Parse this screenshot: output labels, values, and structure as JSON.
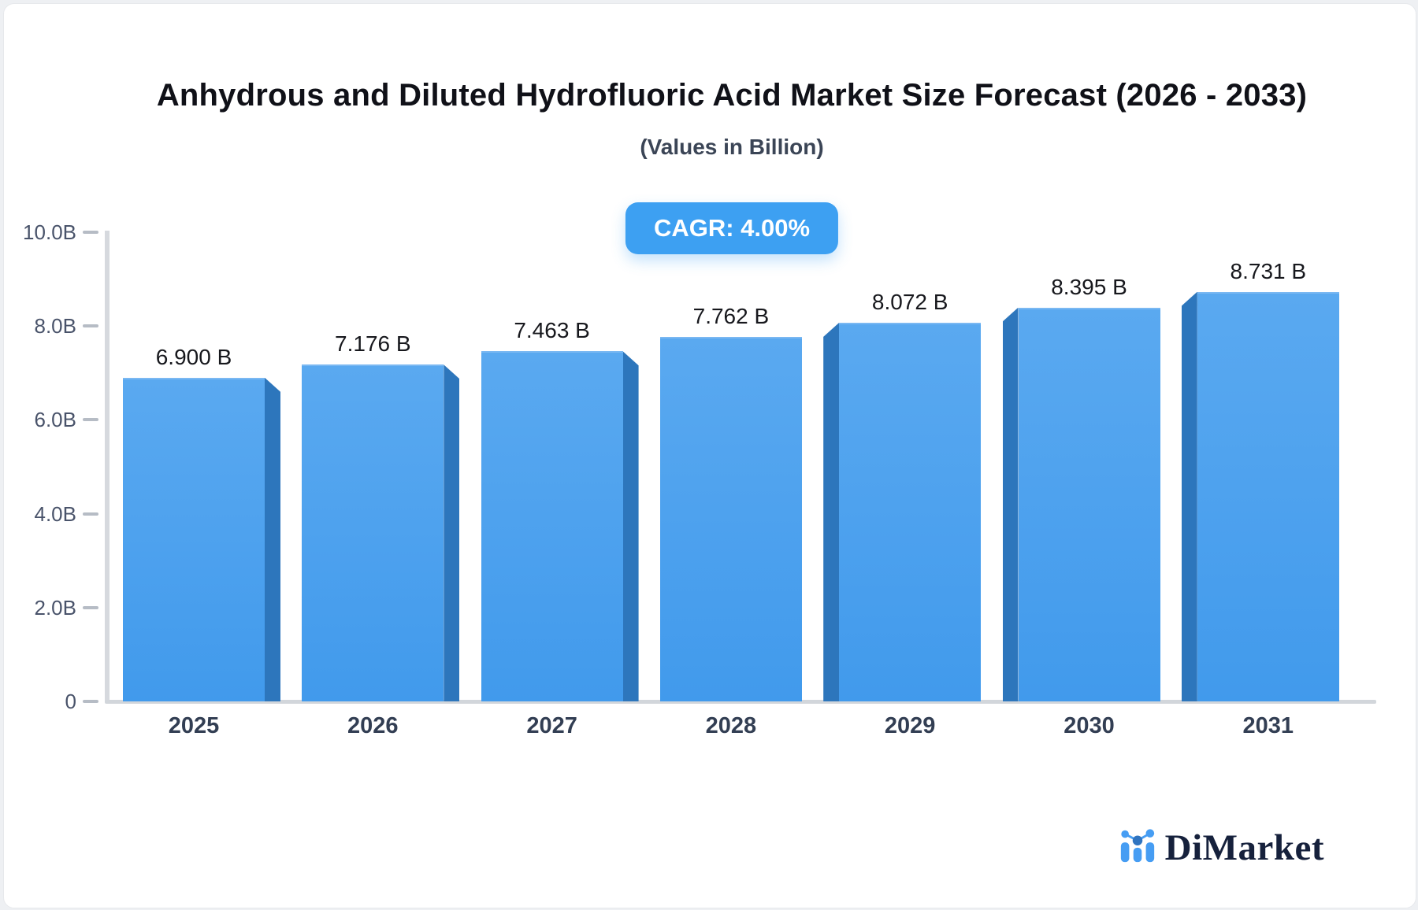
{
  "page": {
    "title": "Anhydrous and Diluted Hydrofluoric Acid Market Size Forecast (2026 - 2033)",
    "subtitle": "(Values in Billion)"
  },
  "badge": {
    "label": "CAGR: 4.00%",
    "color": "#3da0f2"
  },
  "chart_data": {
    "type": "bar",
    "title": "Anhydrous and Diluted Hydrofluoric Acid Market Size Forecast (2026 - 2033)",
    "subtitle": "(Values in Billion)",
    "categories": [
      "2025",
      "2026",
      "2027",
      "2028",
      "2029",
      "2030",
      "2031"
    ],
    "values": [
      6.9,
      7.176,
      7.463,
      7.762,
      8.072,
      8.395,
      8.731
    ],
    "bar_labels": [
      "6.900 B",
      "7.176 B",
      "7.463 B",
      "7.762 B",
      "8.072 B",
      "8.395 B",
      "8.731 B"
    ],
    "xlabel": "",
    "ylabel": "",
    "ylim": [
      0,
      10
    ],
    "ytick_labels": [
      "0",
      "2.0B",
      "4.0B",
      "6.0B",
      "8.0B",
      "10.0B"
    ],
    "ytick_values": [
      0,
      2,
      4,
      6,
      8,
      10
    ],
    "grid": "off",
    "legend": "none",
    "bar_color_top": "#5aa9f0",
    "bar_color_bottom": "#419aec",
    "bar_side_color": "#2d76bc",
    "effect": "3d-perspective-toward-center"
  },
  "logo": {
    "text": "DiMarket",
    "icon": "bar-line-chart-icon",
    "color": "#16213c",
    "icon_color": "#469df3"
  }
}
